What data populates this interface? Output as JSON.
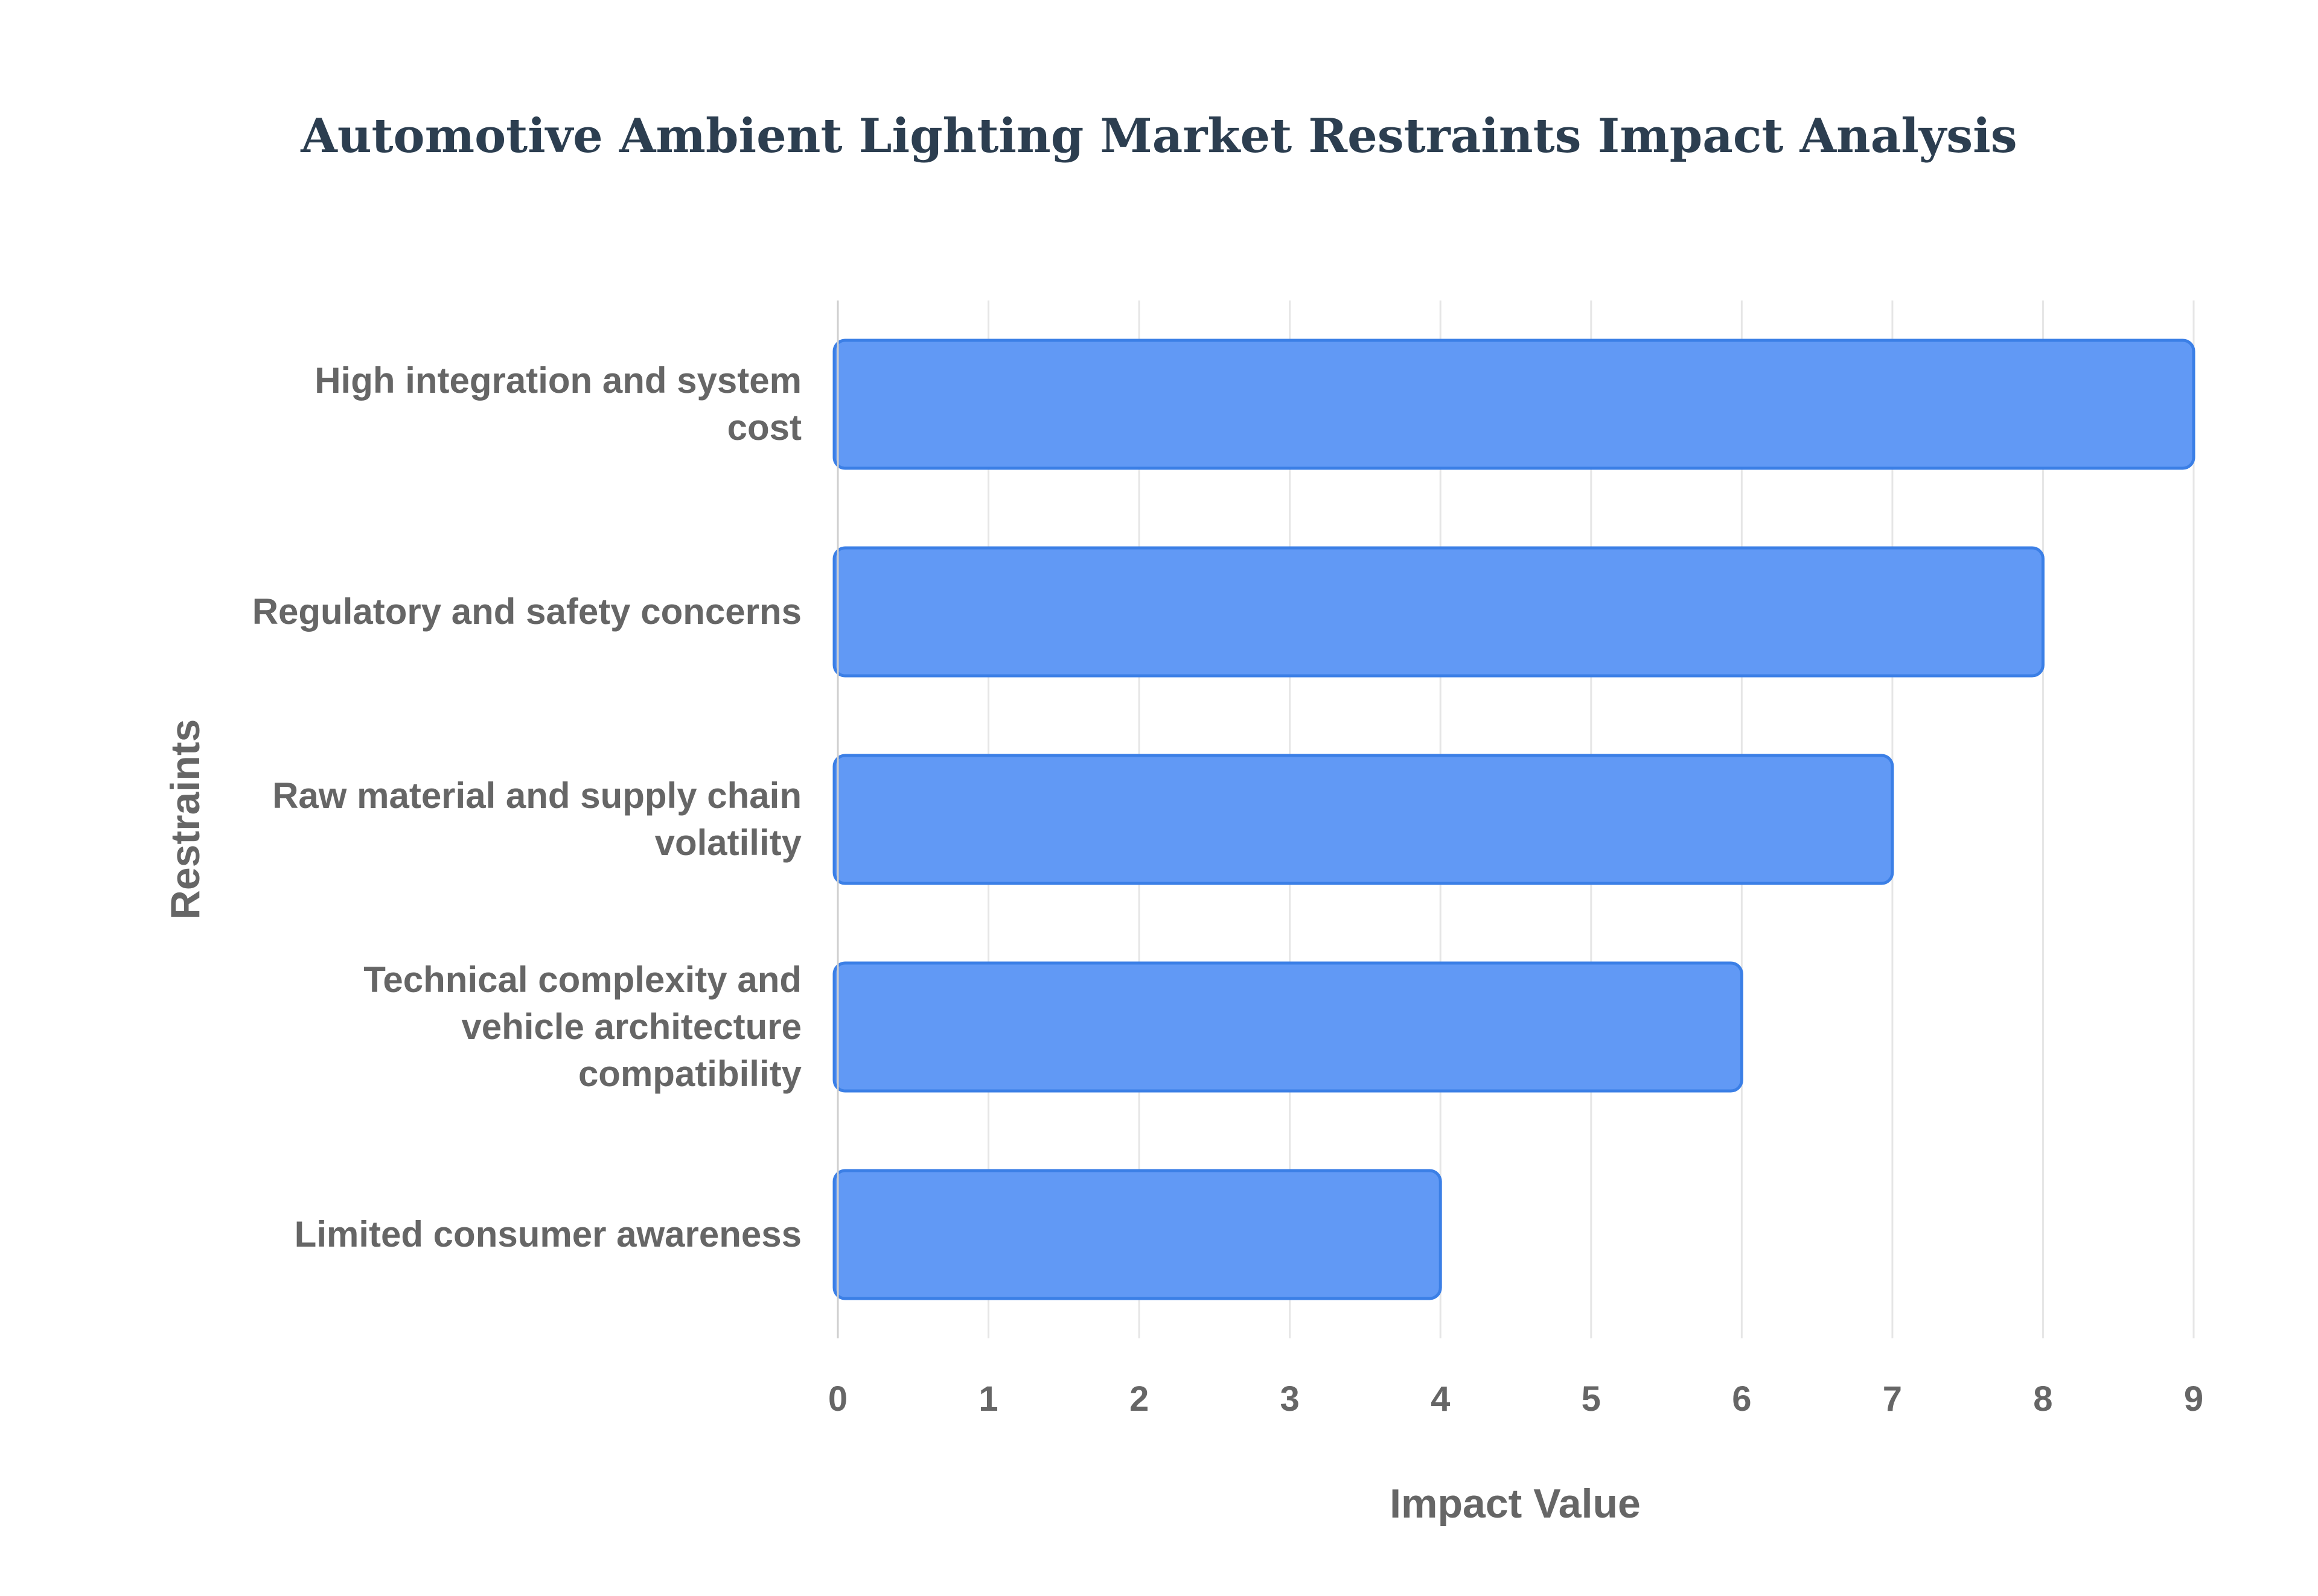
{
  "chart_data": {
    "type": "bar",
    "orientation": "horizontal",
    "title": "Automotive Ambient Lighting Market Restraints Impact Analysis",
    "xlabel": "Impact Value",
    "ylabel": "Restraints",
    "categories": [
      "High integration and system cost",
      "Regulatory and safety concerns",
      "Raw material and supply chain volatility",
      "Technical complexity and vehicle architecture compatibility",
      "Limited consumer awareness"
    ],
    "category_label_lines": [
      [
        "High integration and system",
        "cost"
      ],
      [
        "Regulatory and safety concerns"
      ],
      [
        "Raw material and supply chain",
        "volatility"
      ],
      [
        "Technical complexity and",
        "vehicle architecture",
        "compatibility"
      ],
      [
        "Limited consumer awareness"
      ]
    ],
    "values": [
      9,
      8,
      7,
      6,
      4
    ],
    "xlim": [
      0,
      9
    ],
    "xticks": [
      0,
      1,
      2,
      3,
      4,
      5,
      6,
      7,
      8,
      9
    ],
    "grid": "vertical",
    "legend": "none",
    "colors": {
      "bar_fill": "#6199f5",
      "bar_stroke": "#3b7fe6",
      "title": "#2c3e50",
      "text": "#666666",
      "grid": "#e6e6e6",
      "axis": "#cfcfcf"
    }
  }
}
